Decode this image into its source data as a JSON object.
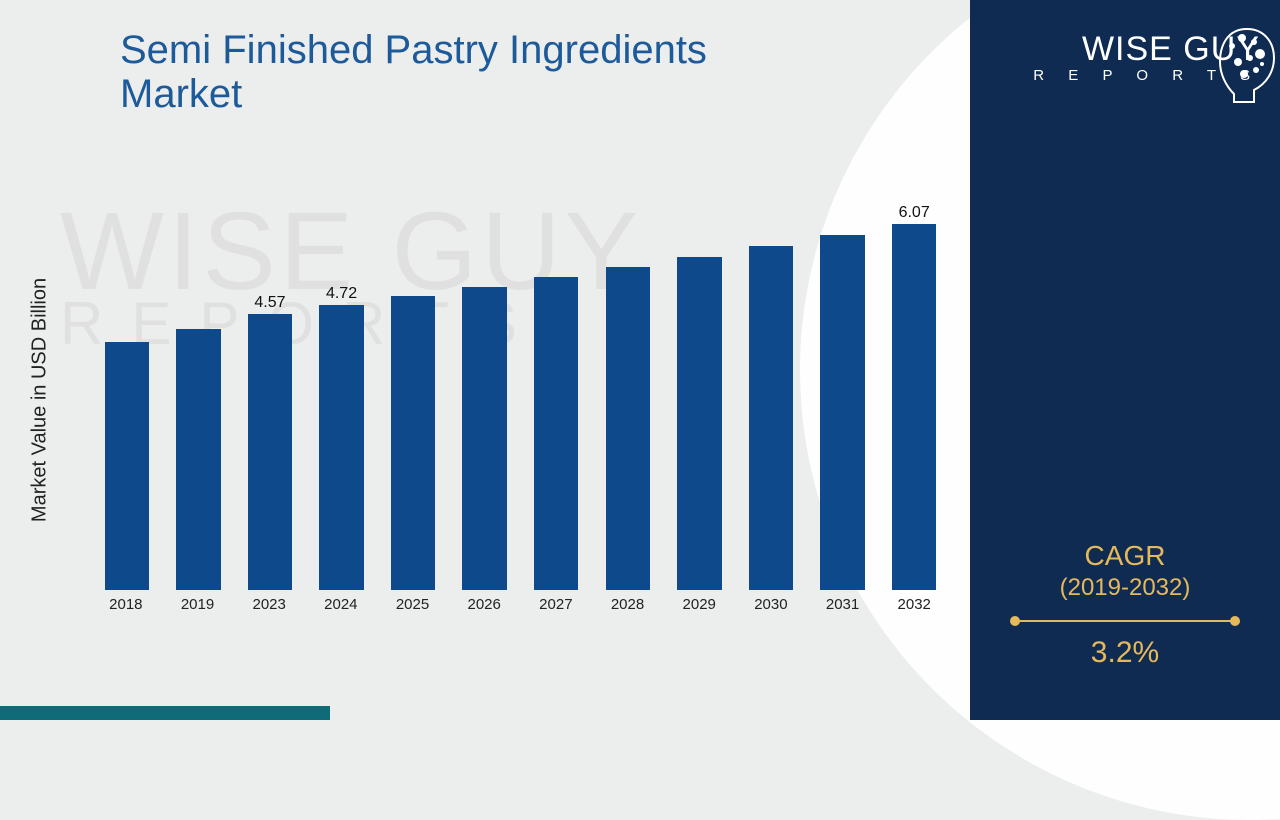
{
  "title": "Semi Finished Pastry Ingredients Market",
  "y_axis_label": "Market Value in USD Billion",
  "logo": {
    "main": "WISE GUY",
    "sub": "R E P O R T S"
  },
  "cagr": {
    "label": "CAGR",
    "range": "(2019-2032)",
    "value": "3.2%"
  },
  "chart": {
    "type": "bar",
    "categories": [
      "2018",
      "2019",
      "2023",
      "2024",
      "2025",
      "2026",
      "2027",
      "2028",
      "2029",
      "2030",
      "2031",
      "2032"
    ],
    "values": [
      4.12,
      4.33,
      4.57,
      4.72,
      4.87,
      5.03,
      5.19,
      5.35,
      5.52,
      5.7,
      5.88,
      6.07
    ],
    "show_label": [
      false,
      false,
      true,
      true,
      false,
      false,
      false,
      false,
      false,
      false,
      false,
      true
    ],
    "bar_color": "#0e4a8b",
    "y_max": 6.8,
    "y_min": 0,
    "background_color": "#eceded",
    "title_color": "#1d5a9a",
    "title_fontsize": 40,
    "axis_label_fontsize": 20,
    "tick_fontsize": 15,
    "bar_width_ratio": 0.62
  },
  "colors": {
    "panel": "#0f2b52",
    "accent": "#e5b95a",
    "bottom_strip": "#0f6b77",
    "white_circle": "#ffffff"
  },
  "watermark": {
    "main": "WISE GUY",
    "sub": "REPORTS"
  }
}
